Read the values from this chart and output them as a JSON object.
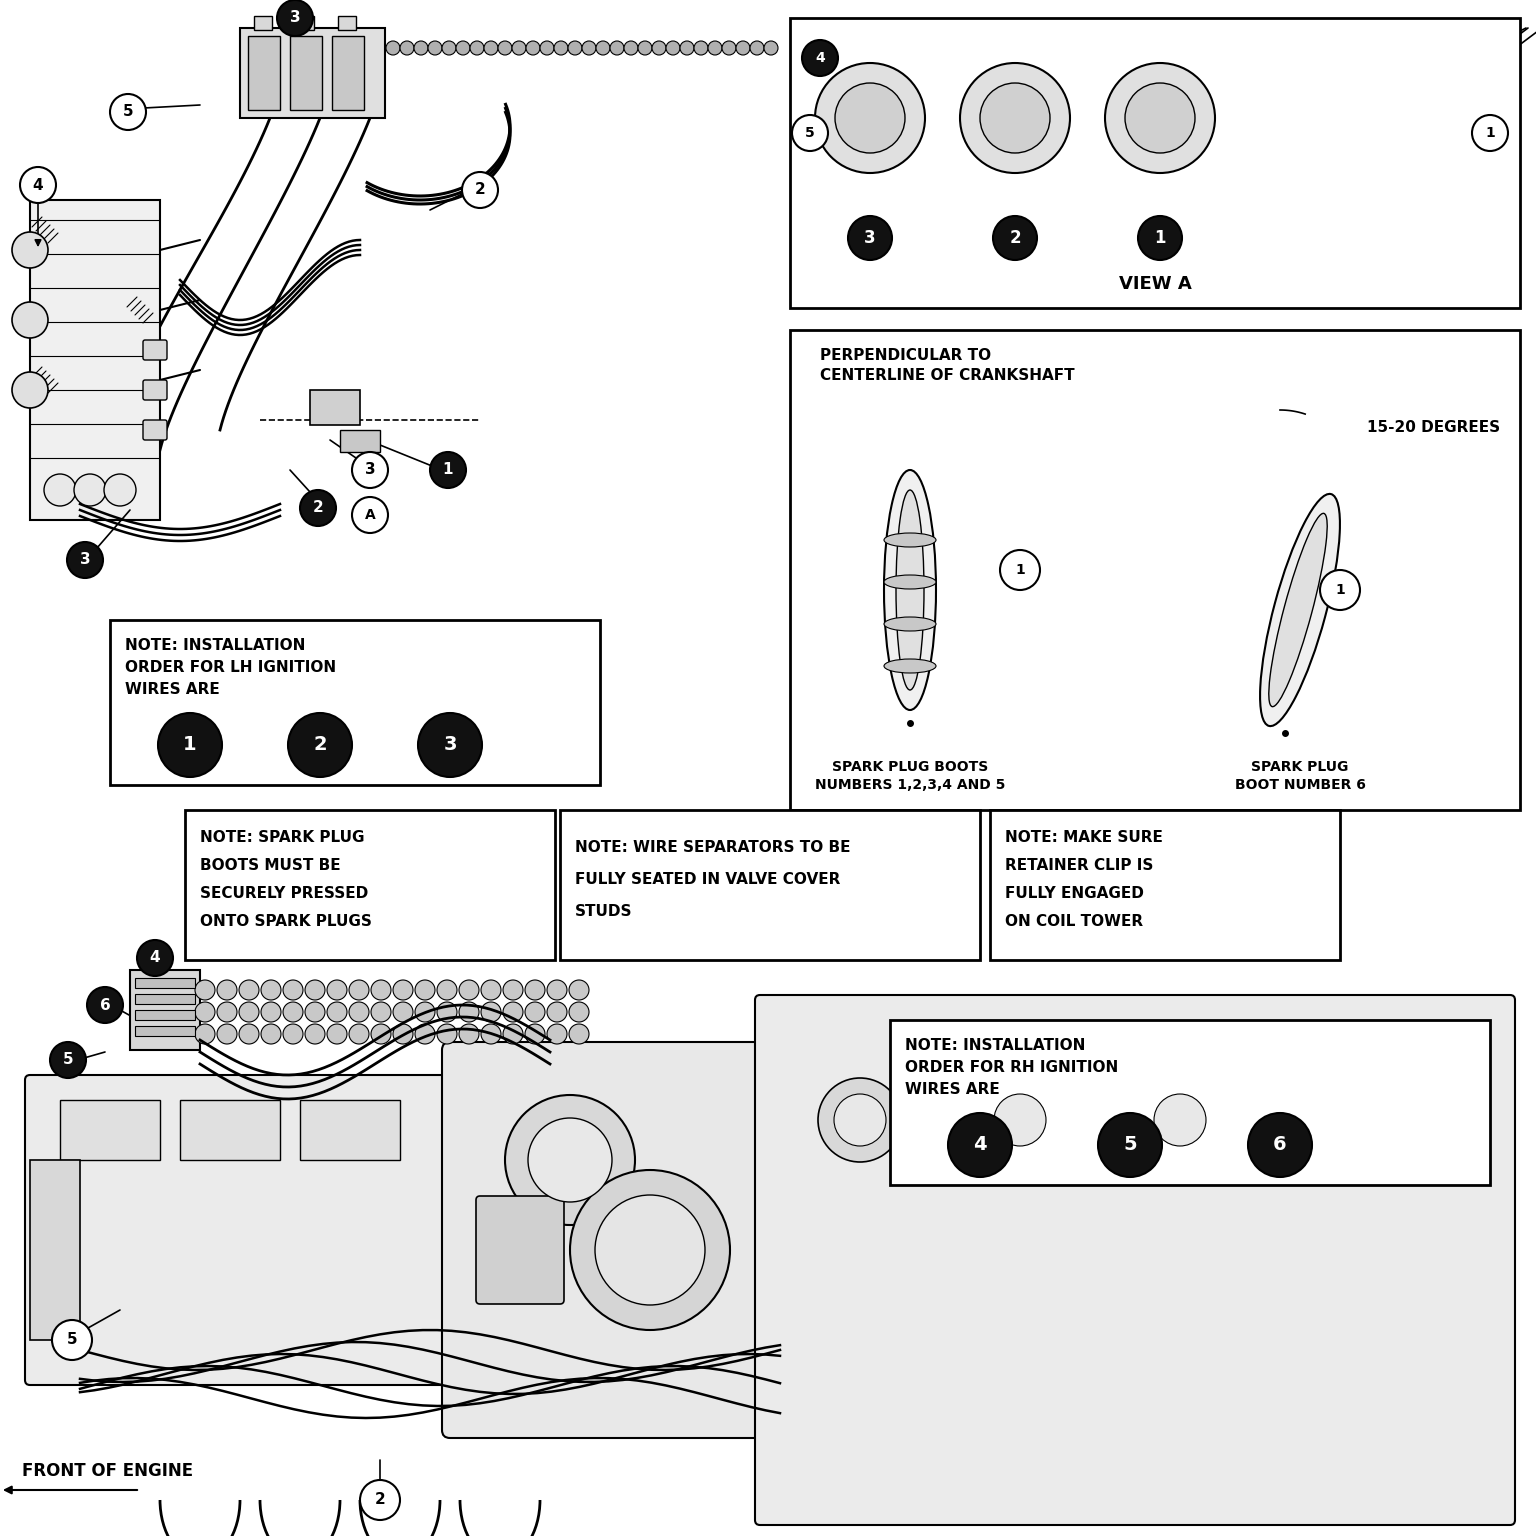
{
  "bg": "#ffffff",
  "lc": "#000000",
  "bk": "#111111",
  "wh": "#ffffff",
  "note_lh_line1": "NOTE: INSTALLATION",
  "note_lh_line2": "ORDER FOR LH IGNITION",
  "note_lh_line3": "WIRES ARE",
  "note_lh_circles": [
    "1",
    "2",
    "3"
  ],
  "note_rh_line1": "NOTE: INSTALLATION",
  "note_rh_line2": "ORDER FOR RH IGNITION",
  "note_rh_line3": "WIRES ARE",
  "note_rh_circles": [
    "4",
    "5",
    "6"
  ],
  "note_spark_plug_lines": [
    "NOTE: SPARK PLUG",
    "BOOTS MUST BE",
    "SECURELY PRESSED",
    "ONTO SPARK PLUGS"
  ],
  "note_wire_sep_lines": [
    "NOTE: WIRE SEPARATORS TO BE",
    "FULLY SEATED IN VALVE COVER",
    "STUDS"
  ],
  "note_retainer_lines": [
    "NOTE: MAKE SURE",
    "RETAINER CLIP IS",
    "FULLY ENGAGED",
    "ON COIL TOWER"
  ],
  "view_a_label": "VIEW A",
  "perp_lines": [
    "PERPENDICULAR TO",
    "CENTERLINE OF CRANKSHAFT"
  ],
  "degrees_label": "15-20 DEGREES",
  "boot_label_lines": [
    "SPARK PLUG BOOTS",
    "NUMBERS 1,2,3,4 AND 5"
  ],
  "boot6_label_lines": [
    "SPARK PLUG",
    "BOOT NUMBER 6"
  ],
  "front_engine": "FRONT OF ENGINE"
}
